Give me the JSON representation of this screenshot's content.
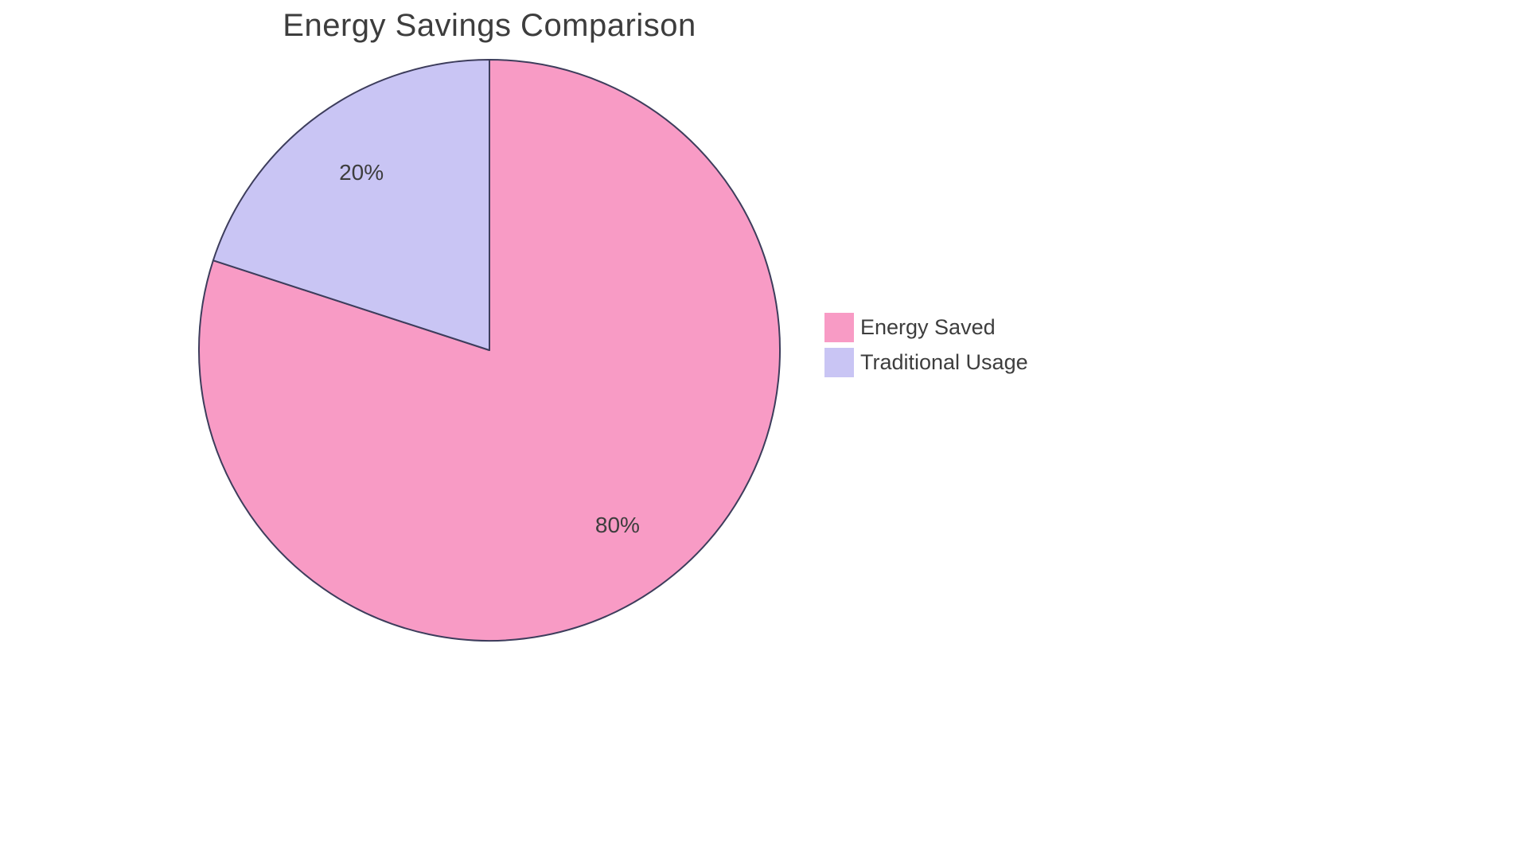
{
  "chart_data": {
    "type": "pie",
    "title": "Energy Savings Comparison",
    "labels": [
      "Energy Saved",
      "Traditional Usage"
    ],
    "values": [
      80,
      20
    ],
    "slice_labels": [
      "80%",
      "20%"
    ],
    "colors": [
      "#F89BC5",
      "#C9C5F4"
    ],
    "border_color": "#3D3D5C",
    "text_color": "#3d3d3d",
    "legend_position": "right",
    "start_angle_deg": 0,
    "direction": "clockwise"
  }
}
